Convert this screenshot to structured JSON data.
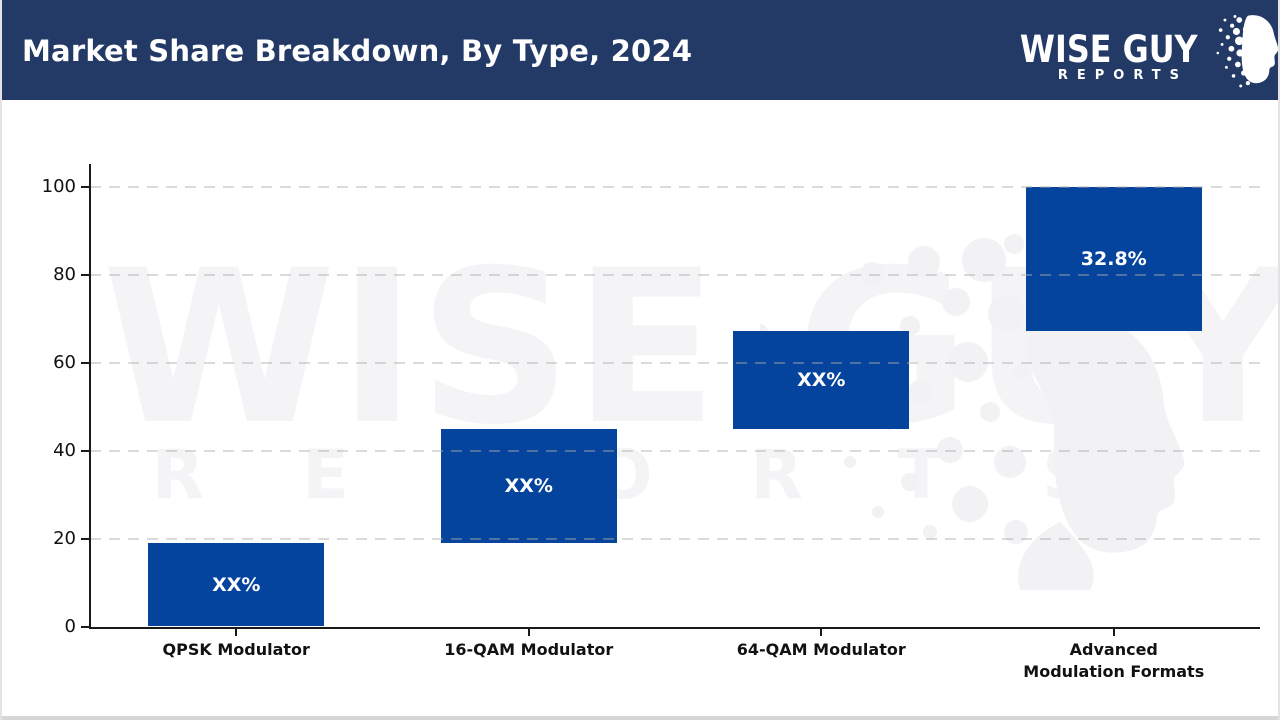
{
  "header": {
    "title": "Market Share Breakdown, By Type, 2024",
    "logo": {
      "line1": "WISE GUY",
      "line2": "REPORTS"
    }
  },
  "watermark": {
    "line1": "WISE GUY",
    "line2": "REPORTS"
  },
  "colors": {
    "header_bg": "#233a66",
    "bar": "#04449c",
    "bar_label": "#ffffff",
    "axis": "#1a1a1a",
    "gridline": "#dcdcdc",
    "watermark": "#f4f4f6"
  },
  "chart_data": {
    "type": "bar",
    "subtype": "waterfall",
    "title": "Market Share Breakdown, By Type, 2024",
    "categories": [
      "QPSK Modulator",
      "16-QAM Modulator",
      "64-QAM Modulator",
      "Advanced\nModulation Formats"
    ],
    "bars": [
      {
        "category": "QPSK Modulator",
        "start": 0,
        "end": 19,
        "value": 19,
        "label": "XX%"
      },
      {
        "category": "16-QAM Modulator",
        "start": 19,
        "end": 45,
        "value": 26,
        "label": "XX%"
      },
      {
        "category": "64-QAM Modulator",
        "start": 45,
        "end": 67.2,
        "value": 22.2,
        "label": "XX%"
      },
      {
        "category": "Advanced Modulation Formats",
        "start": 67.2,
        "end": 100,
        "value": 32.8,
        "label": "32.8%"
      }
    ],
    "xlabel": "",
    "ylabel": "",
    "ylim": [
      0,
      100
    ],
    "yticks": [
      0,
      20,
      40,
      60,
      80,
      100
    ],
    "grid": "horizontal-dashed",
    "legend": "none"
  }
}
